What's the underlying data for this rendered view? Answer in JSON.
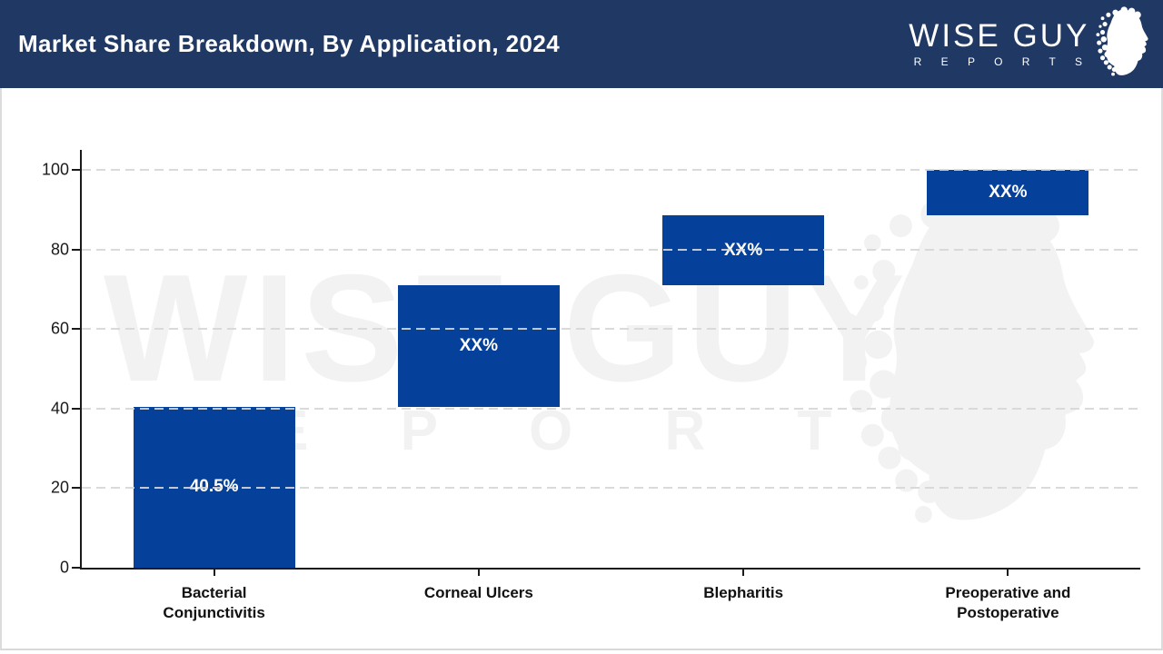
{
  "header": {
    "title": "Market Share Breakdown, By Application, 2024",
    "logo": {
      "line1": "WISE GUY",
      "line2": "R E P O R T S"
    }
  },
  "watermark": {
    "line1": "WISE GUY",
    "line2": "R E P O R T S"
  },
  "chart_data": {
    "type": "bar",
    "subtype": "waterfall-cumulative",
    "title": "Market Share Breakdown, By Application, 2024",
    "categories": [
      "Bacterial Conjunctivitis",
      "Corneal Ulcers",
      "Blepharitis",
      "Preoperative and Postoperative"
    ],
    "segments": [
      {
        "category": "Bacterial Conjunctivitis",
        "start": 0,
        "end": 40.5,
        "label": "40.5%"
      },
      {
        "category": "Corneal Ulcers",
        "start": 40.5,
        "end": 71,
        "label": "XX%"
      },
      {
        "category": "Blepharitis",
        "start": 71,
        "end": 88.5,
        "label": "XX%"
      },
      {
        "category": "Preoperative and Postoperative",
        "start": 88.5,
        "end": 100,
        "label": "XX%"
      }
    ],
    "yticks": [
      0,
      20,
      40,
      60,
      80,
      100
    ],
    "ylim": [
      0,
      105
    ],
    "xlabel": "",
    "ylabel": "",
    "grid": "dashed-horizontal",
    "legend": "none",
    "bar_color": "#05419a",
    "label_color": "#ffffff"
  },
  "colors": {
    "header_bg": "#1f3864",
    "bar": "#05419a",
    "axis": "#1a1a1a",
    "grid": "#d9d9d9",
    "watermark": "#f2f2f2",
    "title_text": "#ffffff",
    "tick_text": "#111111"
  }
}
